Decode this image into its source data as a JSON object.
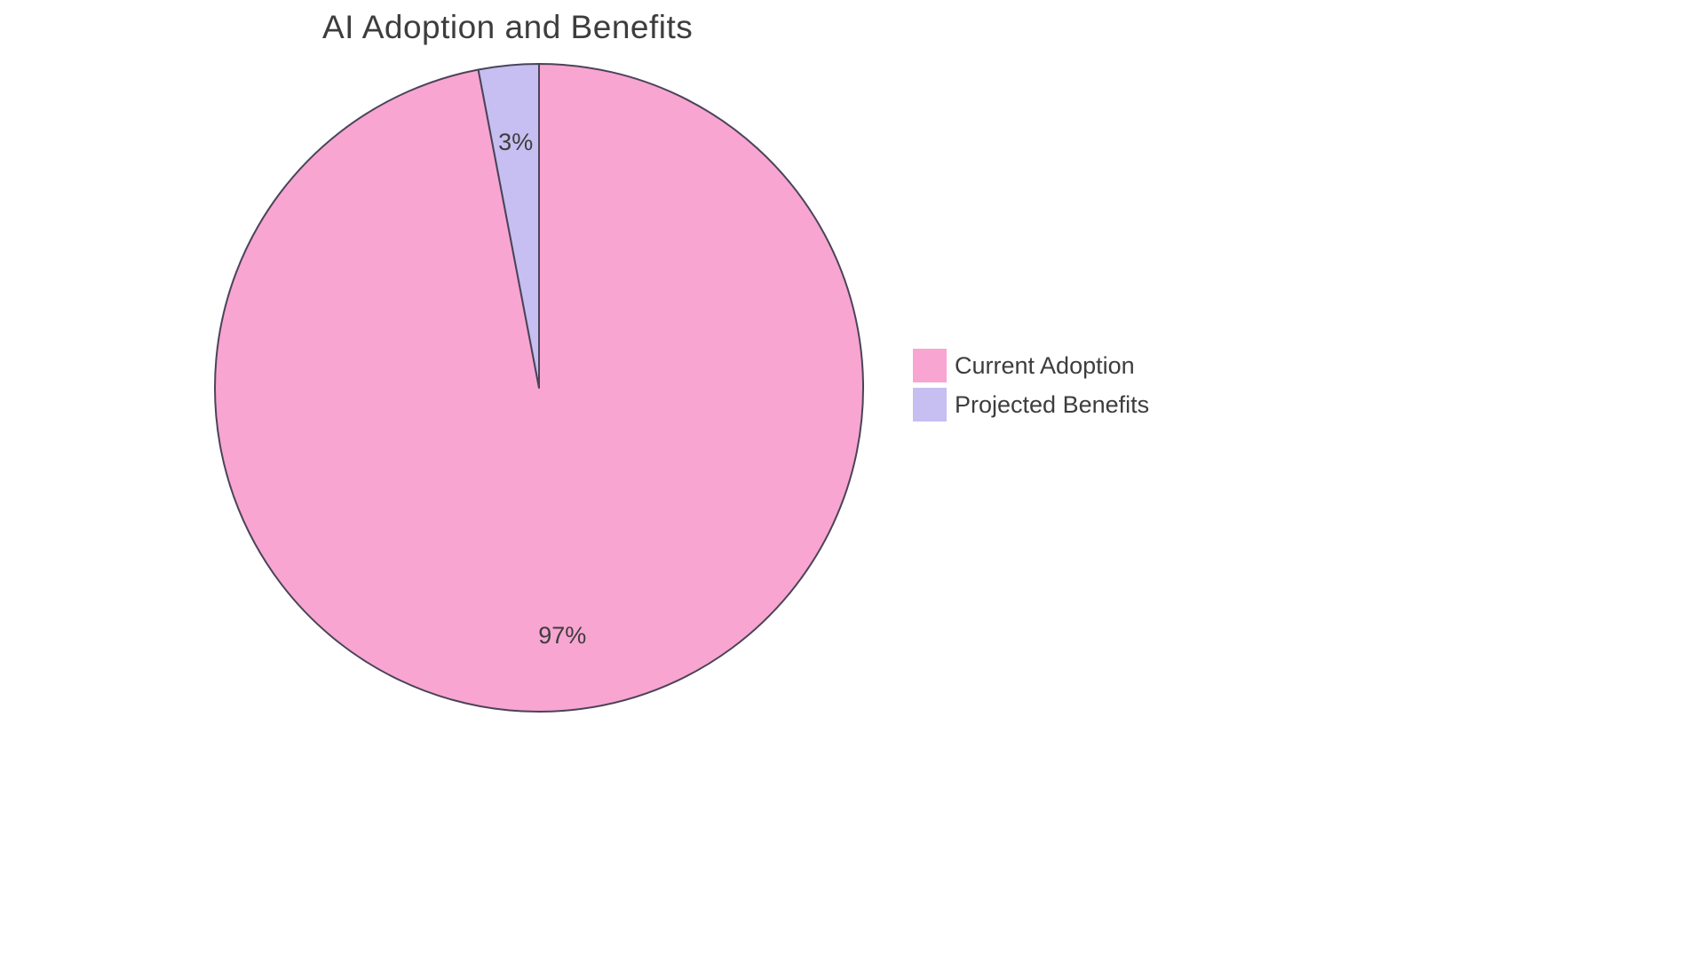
{
  "title": "AI Adoption and Benefits",
  "legend": {
    "items": [
      {
        "label": "Current Adoption"
      },
      {
        "label": "Projected Benefits"
      }
    ]
  },
  "chart_data": {
    "type": "pie",
    "title": "AI Adoption and Benefits",
    "labels": [
      "Current Adoption",
      "Projected Benefits"
    ],
    "values": [
      97,
      3
    ],
    "slice_labels": [
      "97%",
      "3%"
    ],
    "colors": [
      "#F8A5D1",
      "#C7BEF2"
    ],
    "border_color": "#4A4458",
    "start_angle_deg": 0,
    "direction": "clockwise",
    "legend_position": "right"
  }
}
